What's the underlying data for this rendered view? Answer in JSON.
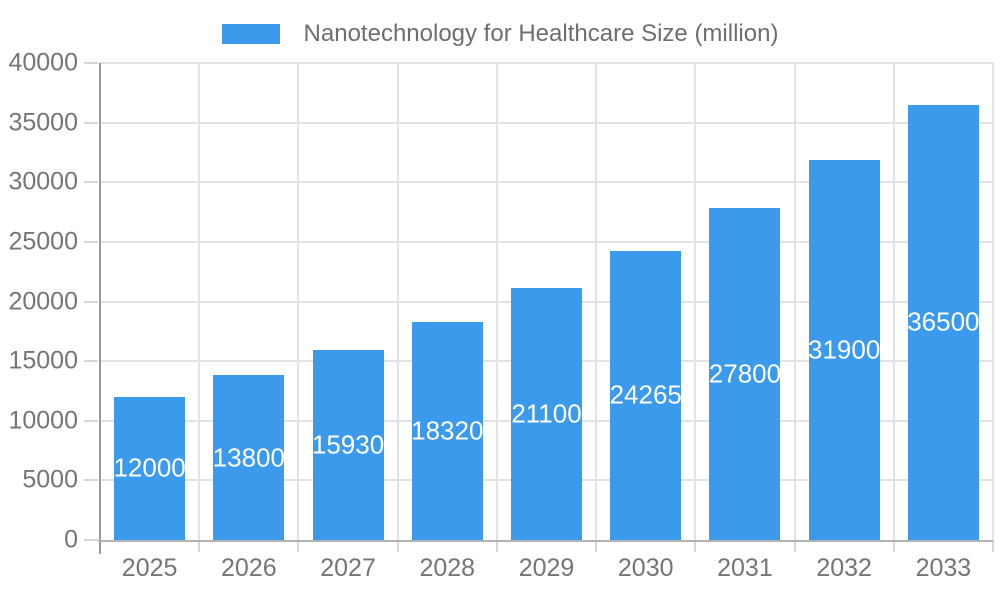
{
  "legend": {
    "label": "Nanotechnology for Healthcare Size (million)"
  },
  "chart_data": {
    "type": "bar",
    "title": "Nanotechnology for Healthcare Size (million)",
    "series_name": "Nanotechnology for Healthcare Size (million)",
    "categories": [
      "2025",
      "2026",
      "2027",
      "2028",
      "2029",
      "2030",
      "2031",
      "2032",
      "2033"
    ],
    "values": [
      12000,
      13800,
      15930,
      18320,
      21100,
      24265,
      27800,
      31900,
      36500
    ],
    "value_labels": [
      "12000",
      "13800",
      "15930",
      "18320",
      "21100",
      "24265",
      "27800",
      "31900",
      "36500"
    ],
    "ytick_labels": [
      "0",
      "5000",
      "10000",
      "15000",
      "20000",
      "25000",
      "30000",
      "35000",
      "40000"
    ],
    "xlabel": "",
    "ylabel": "",
    "ylim": [
      0,
      40000
    ],
    "ytick_step": 5000,
    "grid": true,
    "legend_position": "top"
  },
  "colors": {
    "bar": "#3B9AEC",
    "bar_value_label": "#FFFFFF",
    "axis_text": "#757575",
    "legend_text": "#6E6E6E",
    "y_axis_line": "#999999",
    "x_axis_line": "#B3B3B3",
    "gridline": "#E3E3E3",
    "tick": "#D6D6D6",
    "background": "#FFFFFF"
  }
}
